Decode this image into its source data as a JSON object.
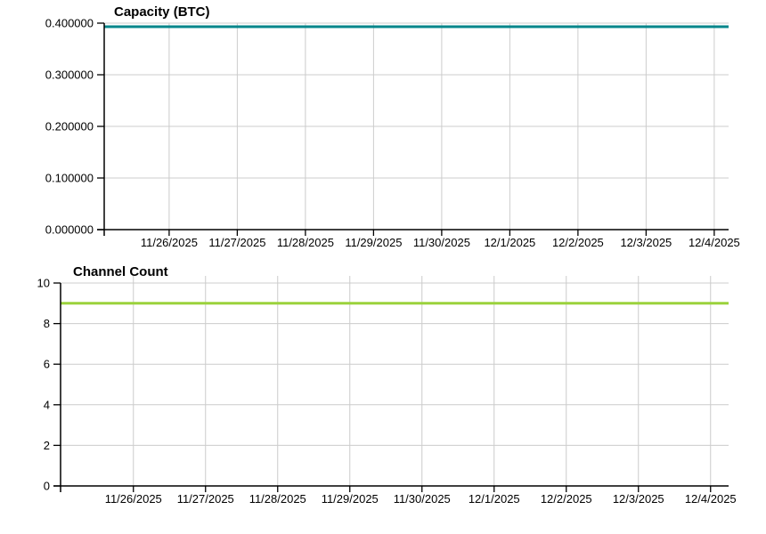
{
  "page": {
    "background": "#ffffff"
  },
  "colors": {
    "grid": "#cccccc",
    "axis": "#000000",
    "tick_text": "#000000",
    "capacity_line": "#00868b",
    "channel_line": "#9bd23c"
  },
  "chart_data": [
    {
      "id": "capacity",
      "type": "line",
      "title": "Capacity (BTC)",
      "xlabel": "",
      "ylabel": "",
      "x_tick_labels": [
        "11/26/2025",
        "11/27/2025",
        "11/28/2025",
        "11/29/2025",
        "11/30/2025",
        "12/1/2025",
        "12/2/2025",
        "12/3/2025",
        "12/4/2025"
      ],
      "y_tick_labels": [
        "0.000000",
        "0.100000",
        "0.200000",
        "0.300000",
        "0.400000"
      ],
      "y_tick_values": [
        0,
        0.1,
        0.2,
        0.3,
        0.4
      ],
      "ylim": [
        0,
        0.4
      ],
      "grid": true,
      "legend": "none",
      "series": [
        {
          "name": "Capacity (BTC)",
          "color": "#00868b",
          "shape": "constant-horizontal-line",
          "constant_value": 0.393
        }
      ]
    },
    {
      "id": "channel-count",
      "type": "line",
      "title": "Channel Count",
      "xlabel": "",
      "ylabel": "",
      "x_tick_labels": [
        "11/26/2025",
        "11/27/2025",
        "11/28/2025",
        "11/29/2025",
        "11/30/2025",
        "12/1/2025",
        "12/2/2025",
        "12/3/2025",
        "12/4/2025"
      ],
      "y_tick_labels": [
        "0",
        "2",
        "4",
        "6",
        "8",
        "10"
      ],
      "y_tick_values": [
        0,
        2,
        4,
        6,
        8,
        10
      ],
      "ylim": [
        0,
        10
      ],
      "grid": true,
      "legend": "none",
      "series": [
        {
          "name": "Channel Count",
          "color": "#9bd23c",
          "shape": "constant-horizontal-line",
          "constant_value": 9
        }
      ]
    }
  ]
}
